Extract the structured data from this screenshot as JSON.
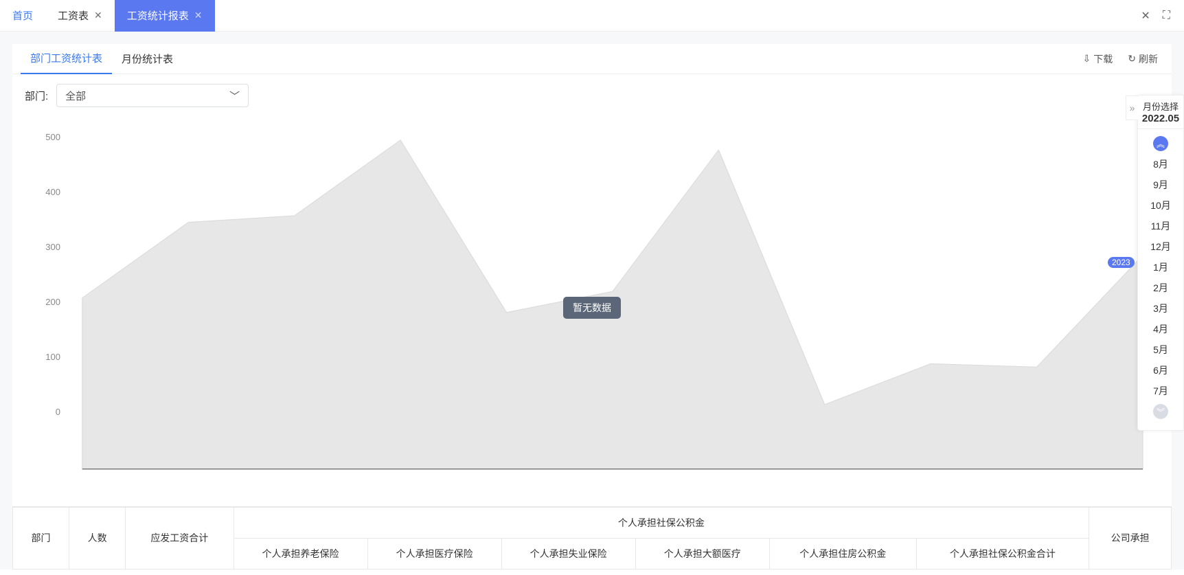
{
  "tabs": {
    "home": "首页",
    "salary": "工资表",
    "report": "工资统计报表"
  },
  "sub_tabs": {
    "dept": "部门工资统计表",
    "month": "月份统计表"
  },
  "actions": {
    "download": "下载",
    "refresh": "刷新"
  },
  "filter": {
    "label": "部门:",
    "value": "全部"
  },
  "chart": {
    "type": "area",
    "no_data": "暂无数据",
    "ylim": [
      0,
      500
    ],
    "ytick_step": 100,
    "yticks": [
      "0",
      "100",
      "200",
      "300",
      "400",
      "500"
    ],
    "values": [
      260,
      375,
      385,
      500,
      238,
      270,
      485,
      98,
      160,
      155,
      325
    ],
    "fill_color": "#e7e7e7",
    "line_color": "#dcdcdc",
    "axis_color": "#666666",
    "label_color": "#888888",
    "label_fontsize": 13,
    "background": "#ffffff"
  },
  "table": {
    "group_header": "个人承担社保公积金",
    "cols_left": [
      "部门",
      "人数",
      "应发工资合计"
    ],
    "cols_group": [
      "个人承担养老保险",
      "个人承担医疗保险",
      "个人承担失业保险",
      "个人承担大额医疗",
      "个人承担住房公积金",
      "个人承担社保公积金合计"
    ],
    "col_right": "公司承担"
  },
  "month_panel": {
    "title": "月份选择",
    "current": "2022.05",
    "year_badge": "2023",
    "months_a": [
      "8月",
      "9月",
      "10月",
      "11月",
      "12月"
    ],
    "months_b": [
      "1月",
      "2月",
      "3月",
      "4月",
      "5月",
      "6月",
      "7月"
    ]
  },
  "colors": {
    "primary": "#5a78f0",
    "link": "#3a78f2"
  }
}
